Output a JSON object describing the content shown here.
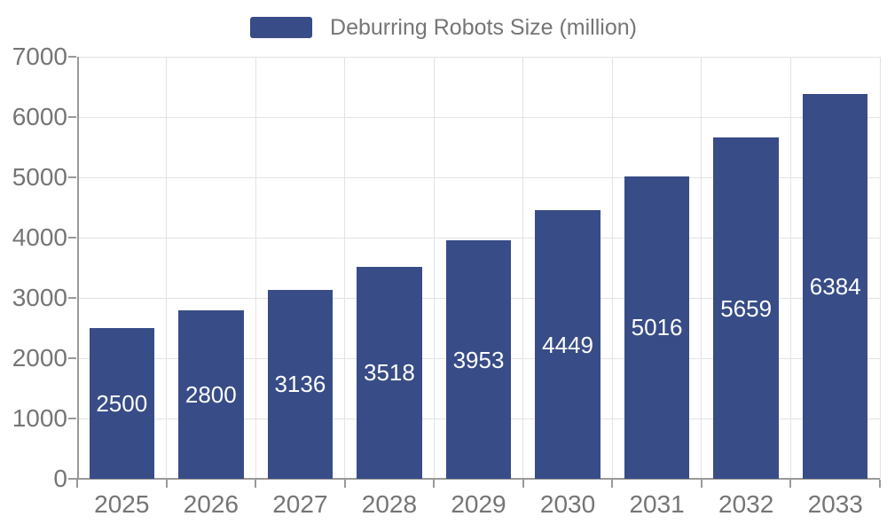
{
  "legend": {
    "label": "Deburring Robots Size (million)"
  },
  "chart_data": {
    "type": "bar",
    "title": "Deburring Robots Size (million)",
    "categories": [
      "2025",
      "2026",
      "2027",
      "2028",
      "2029",
      "2030",
      "2031",
      "2032",
      "2033"
    ],
    "series": [
      {
        "name": "Deburring Robots Size (million)",
        "values": [
          2500,
          2800,
          3136,
          3518,
          3953,
          4449,
          5016,
          5659,
          6384
        ]
      }
    ],
    "xlabel": "",
    "ylabel": "",
    "ylim": [
      0,
      7000
    ],
    "yticks": [
      0,
      1000,
      2000,
      3000,
      4000,
      5000,
      6000,
      7000
    ],
    "grid": true,
    "legend_position": "top",
    "bar_value_labels": "inside-middle",
    "colors": {
      "bar": "#384c87",
      "grid_line": "#e3e3e3",
      "axis_line": "#999999",
      "tick_text": "#757575",
      "legend_text": "#757575",
      "bar_label_text": "#ffffff",
      "background": "#ffffff"
    }
  }
}
